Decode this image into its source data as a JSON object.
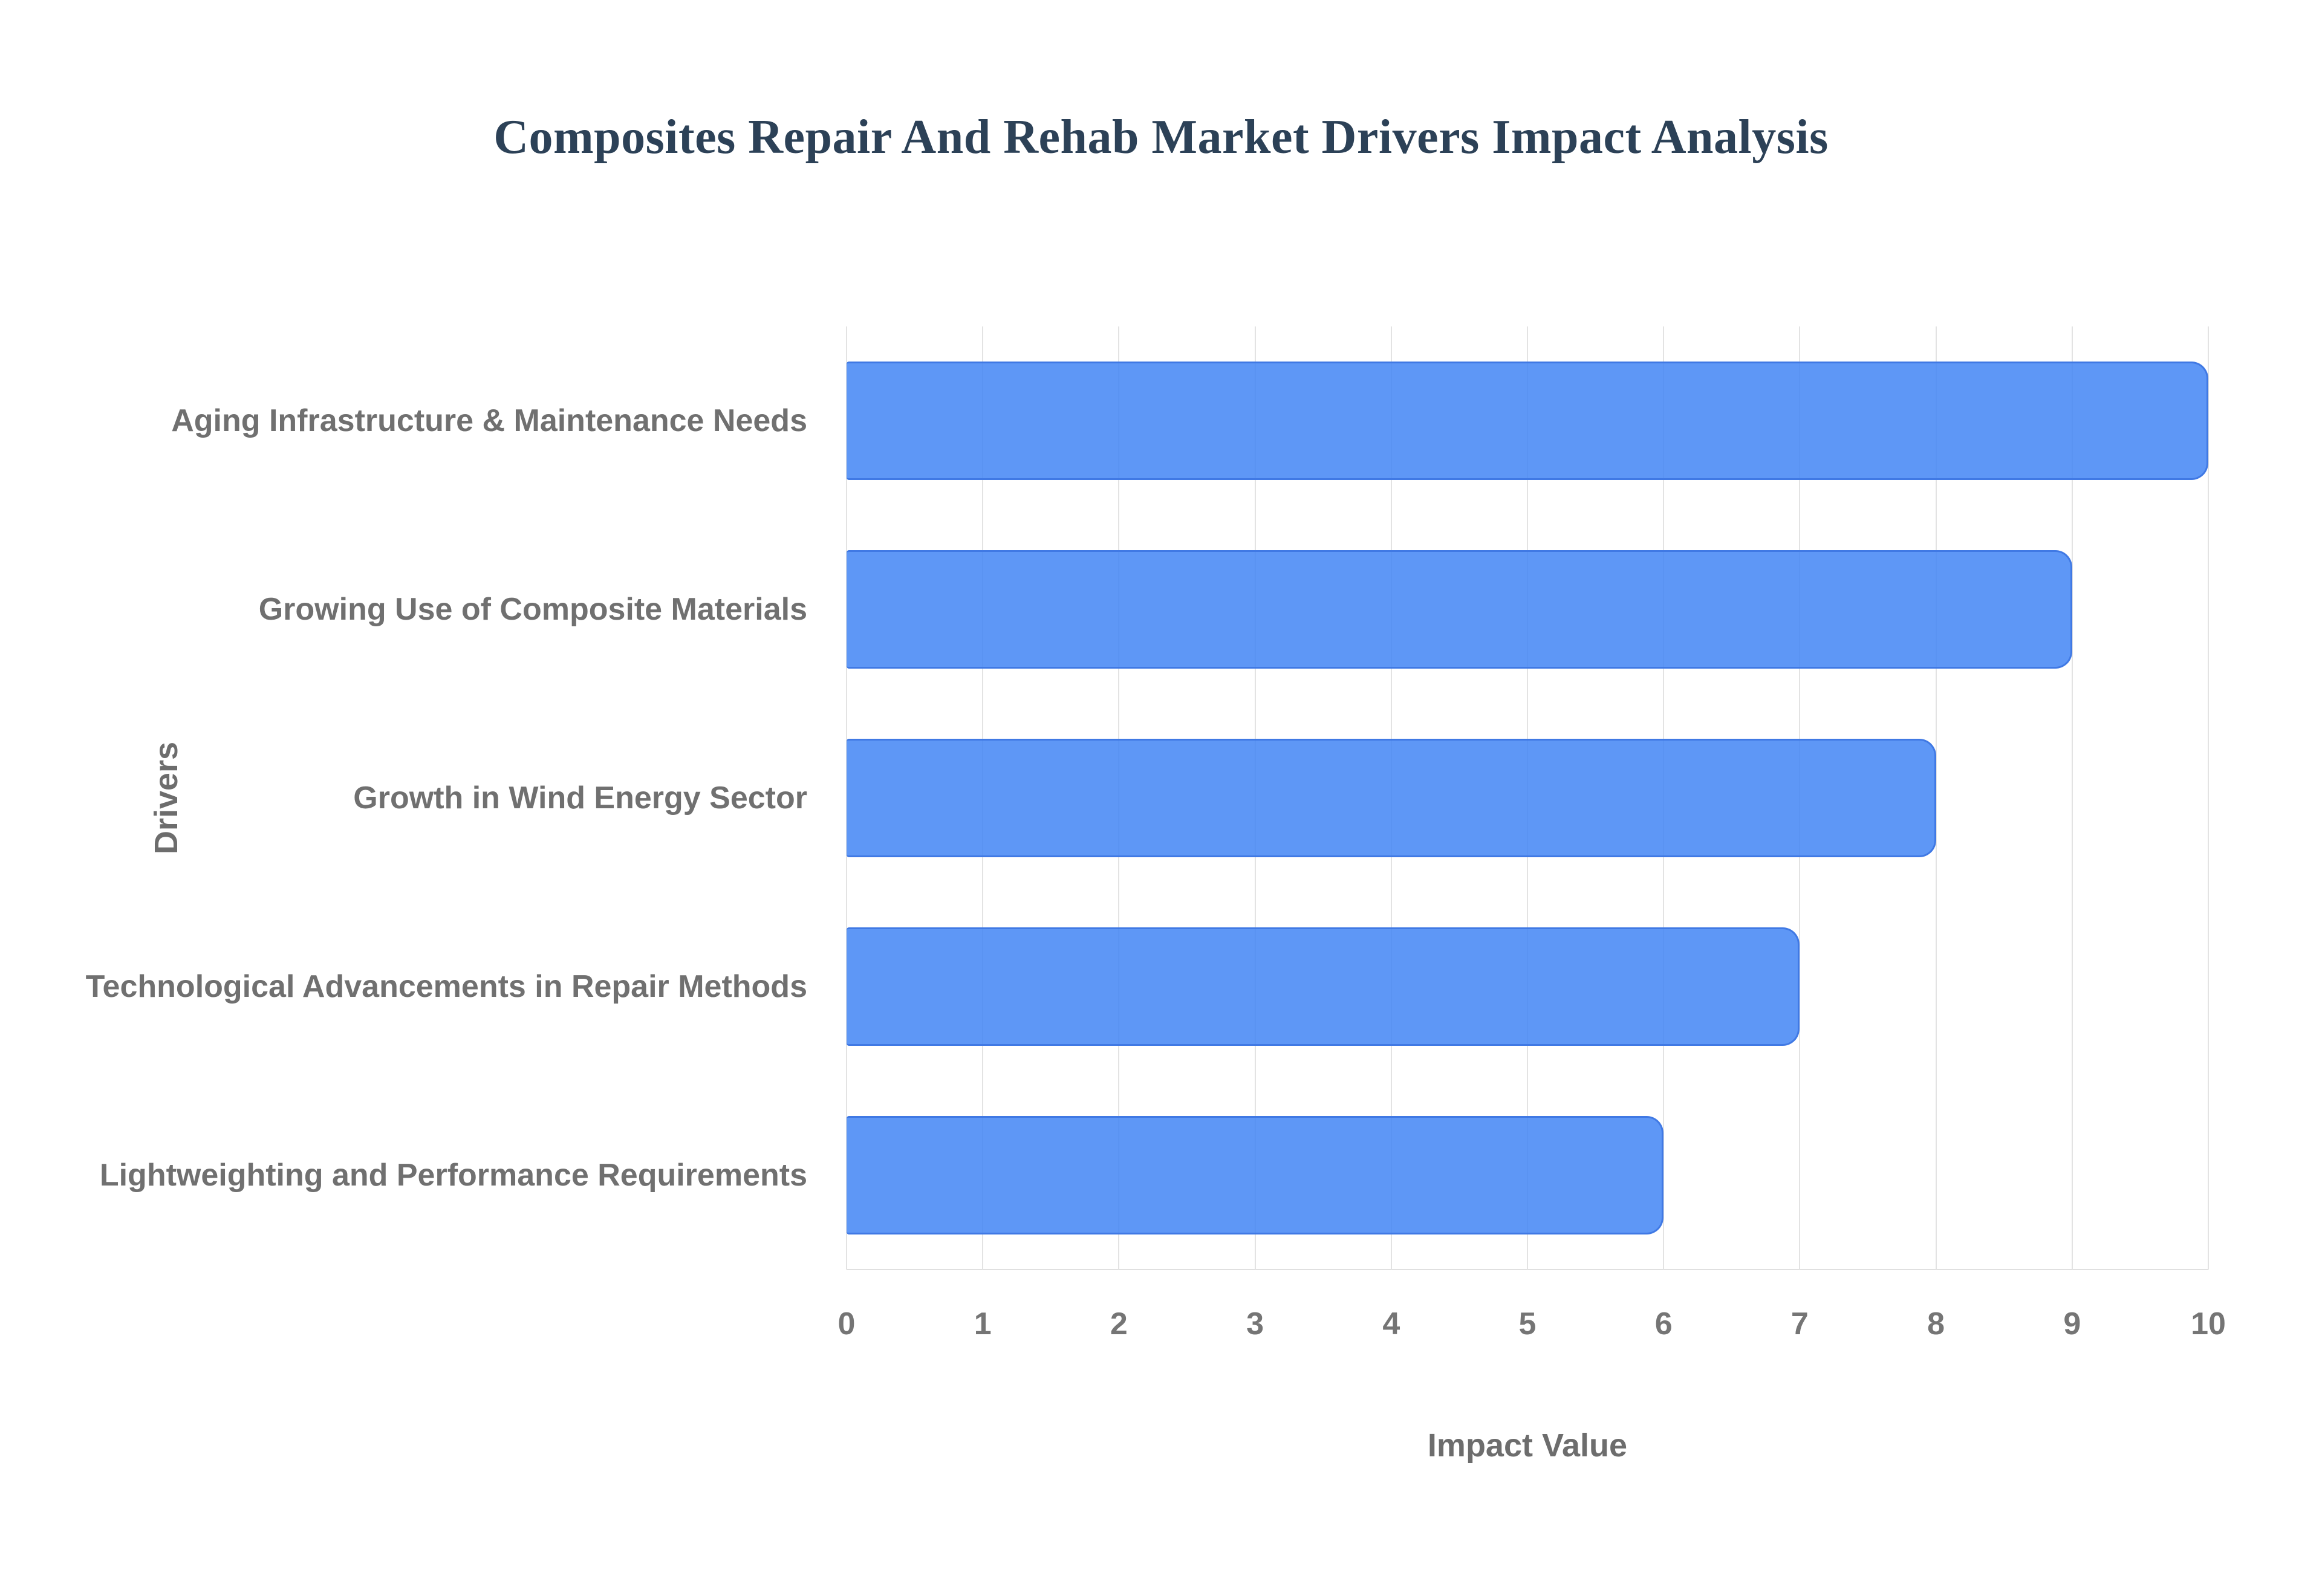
{
  "page": {
    "background": "#ffffff"
  },
  "chart_data": {
    "type": "bar",
    "orientation": "horizontal",
    "title": "Composites Repair And Rehab Market Drivers Impact Analysis",
    "categories": [
      "Aging Infrastructure & Maintenance Needs",
      "Growing Use of Composite Materials",
      "Growth in Wind Energy Sector",
      "Technological Advancements in Repair Methods",
      "Lightweighting and Performance Requirements"
    ],
    "values": [
      10,
      9,
      8,
      7,
      6
    ],
    "xlabel": "Impact Value",
    "ylabel": "Drivers",
    "xlim": [
      0,
      10
    ],
    "xticks": [
      "0",
      "1",
      "2",
      "3",
      "4",
      "5",
      "6",
      "7",
      "8",
      "9",
      "10"
    ],
    "grid": true,
    "legend": "none",
    "colors": {
      "title_text": "#2c4157",
      "bar_fill_rgba": "rgba(66,133,244,0.85)",
      "bar_border": "#4079e4",
      "grid_line": "#e3e3e3",
      "axis_line": "#e0e0e0",
      "tick_text": "#757575",
      "category_text": "#707070",
      "axis_title_text": "#6d6d6d",
      "page_bg": "#ffffff"
    }
  }
}
